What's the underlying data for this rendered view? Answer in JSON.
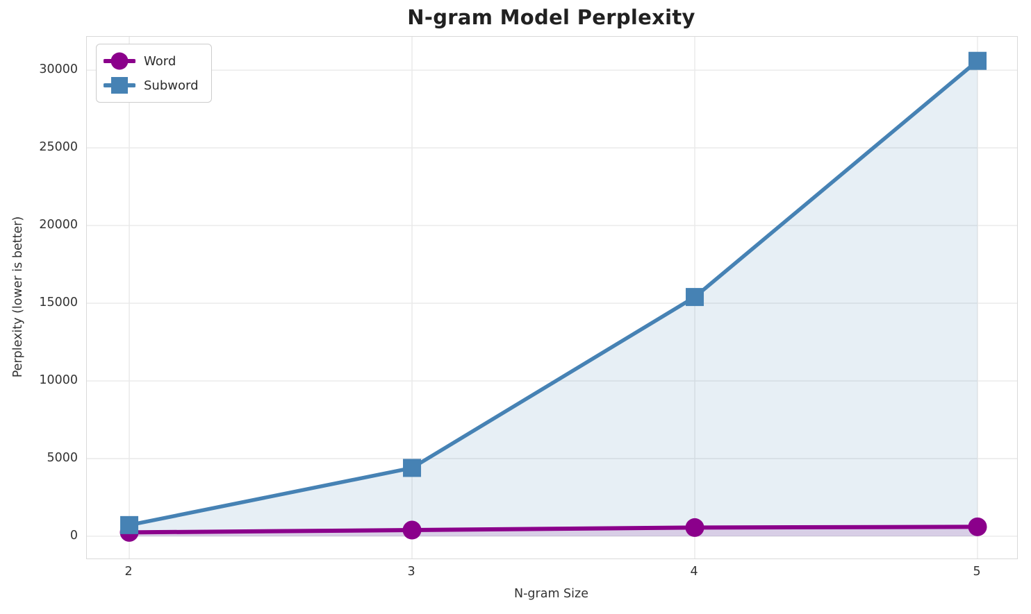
{
  "figure": {
    "title": "N-gram Model Perplexity",
    "x_axis_label": "N-gram Size",
    "y_axis_label": "Perplexity (lower is better)"
  },
  "legend": {
    "items": [
      {
        "label": "Word"
      },
      {
        "label": "Subword"
      }
    ]
  },
  "chart_data": {
    "type": "line",
    "title": "N-gram Model Perplexity",
    "xlabel": "N-gram Size",
    "ylabel": "Perplexity (lower is better)",
    "x": [
      2,
      3,
      4,
      5
    ],
    "series": [
      {
        "name": "Word",
        "values": [
          250,
          400,
          560,
          610
        ],
        "color": "#8b008b",
        "marker": "circle",
        "fill_alpha": 0.15
      },
      {
        "name": "Subword",
        "values": [
          720,
          4400,
          15400,
          30600
        ],
        "color": "#4682b4",
        "marker": "square",
        "fill_alpha": 0.13
      }
    ],
    "xticks": [
      2,
      3,
      4,
      5
    ],
    "yticks": [
      0,
      5000,
      10000,
      15000,
      20000,
      25000,
      30000
    ],
    "xlim": [
      1.85,
      5.14
    ],
    "ylim": [
      -1430,
      32150
    ],
    "grid": true,
    "gridline_color": "#e9e9e9",
    "legend_position": "upper left",
    "fill_to_baseline": 0
  }
}
